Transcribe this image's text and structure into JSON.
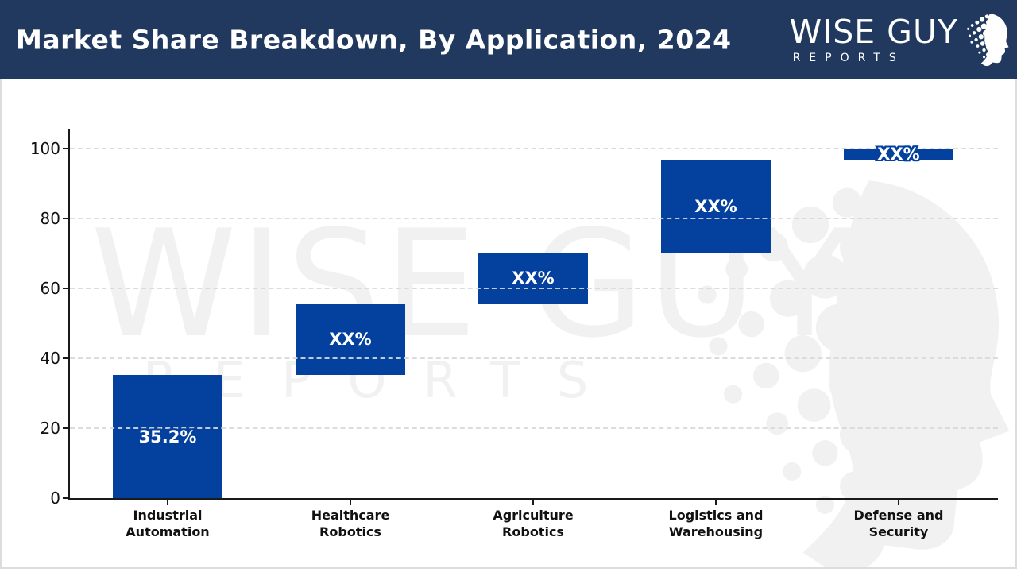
{
  "header": {
    "title": "Market Share Breakdown, By Application, 2024",
    "logo": {
      "name": "WISE GUY",
      "sub": "REPORTS"
    }
  },
  "watermark": {
    "name": "WISE GUY",
    "sub": "REPORTS"
  },
  "colors": {
    "header_bg": "#21395e",
    "bar": "#04419e",
    "grid": "#d9d9d9",
    "axis": "#1a1a1a",
    "watermark": "#f1f1f1",
    "title_text": "#ffffff",
    "bar_label_text": "#ffffff"
  },
  "chart_data": {
    "type": "bar",
    "subtype": "waterfall",
    "title": "Market Share Breakdown, By Application, 2024",
    "categories": [
      "Industrial Automation",
      "Healthcare Robotics",
      "Agriculture Robotics",
      "Logistics and Warehousing",
      "Defense and Security"
    ],
    "segments": [
      {
        "category": "Industrial Automation",
        "lines": [
          "Industrial",
          "Automation"
        ],
        "start": 0,
        "end": 35.2,
        "label": "35.2%"
      },
      {
        "category": "Healthcare Robotics",
        "lines": [
          "Healthcare",
          "Robotics"
        ],
        "start": 35.2,
        "end": 55.5,
        "label": "XX%"
      },
      {
        "category": "Agriculture Robotics",
        "lines": [
          "Agriculture",
          "Robotics"
        ],
        "start": 55.5,
        "end": 70.3,
        "label": "XX%"
      },
      {
        "category": "Logistics and Warehousing",
        "lines": [
          "Logistics and",
          "Warehousing"
        ],
        "start": 70.3,
        "end": 96.7,
        "label": "XX%"
      },
      {
        "category": "Defense and Security",
        "lines": [
          "Defense and",
          "Security"
        ],
        "start": 96.7,
        "end": 100.0,
        "label": "XX%"
      }
    ],
    "yticks": [
      0,
      20,
      40,
      60,
      80,
      100
    ],
    "ylim": [
      0,
      105
    ],
    "xlabel": "",
    "ylabel": "",
    "grid": "dashed-horizontal",
    "legend": "none",
    "value_labels_inside_bars": true
  }
}
